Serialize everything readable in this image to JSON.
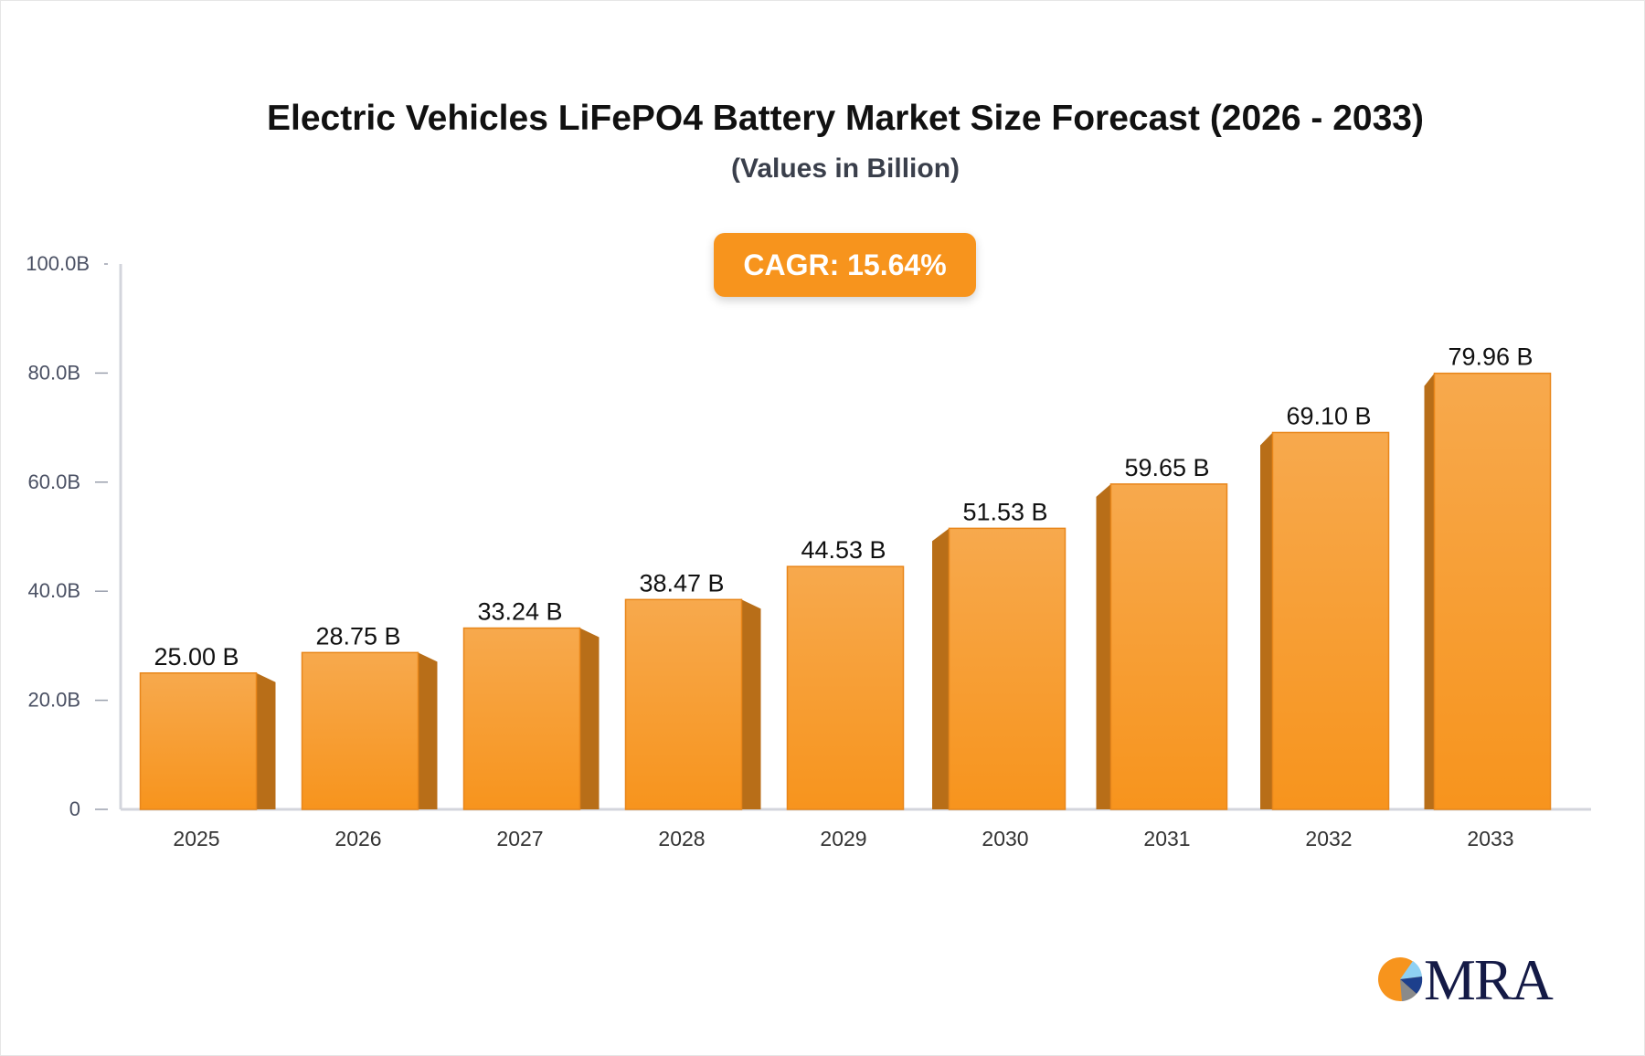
{
  "chart_data": {
    "type": "bar",
    "title": "Electric Vehicles LiFePO4 Battery Market Size Forecast (2026 - 2033)",
    "subtitle": "(Values in Billion)",
    "categories": [
      "2025",
      "2026",
      "2027",
      "2028",
      "2029",
      "2030",
      "2031",
      "2032",
      "2033"
    ],
    "values": [
      25.0,
      28.75,
      33.24,
      38.47,
      44.53,
      51.53,
      59.65,
      69.1,
      79.96
    ],
    "data_labels": [
      "25.00 B",
      "28.75 B",
      "33.24 B",
      "38.47 B",
      "44.53 B",
      "51.53 B",
      "59.65 B",
      "69.10 B",
      "79.96 B"
    ],
    "y_ticks": [
      0,
      20,
      40,
      60,
      80,
      100
    ],
    "y_tick_labels": [
      "0",
      "20.0B",
      "40.0B",
      "60.0B",
      "80.0B",
      "100.0B"
    ],
    "ylim": [
      0,
      100
    ],
    "xlabel": "",
    "ylabel": "",
    "grid": false,
    "bar_color": "#f7941d",
    "bar_side_color": "#b86e18"
  },
  "badge": {
    "label": "CAGR: 15.64%",
    "color": "#f7941d"
  },
  "logo": {
    "text": "MRA"
  }
}
